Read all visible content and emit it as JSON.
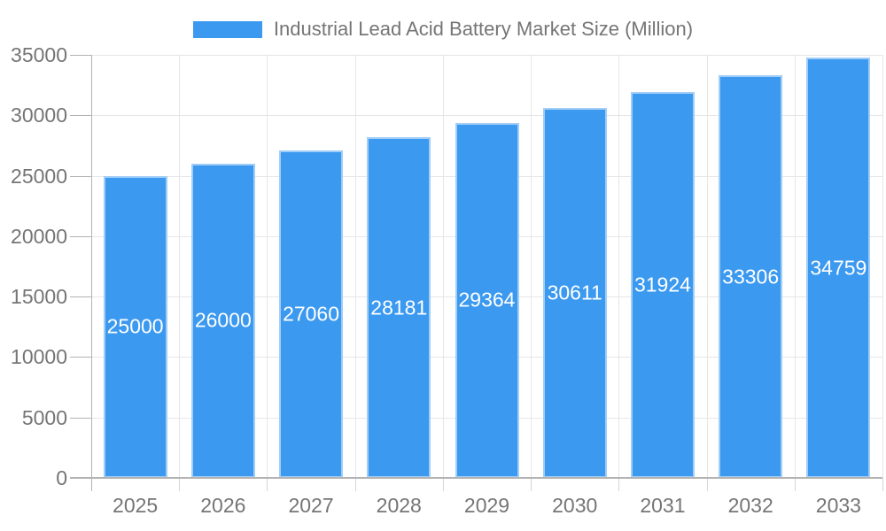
{
  "legend": {
    "label": "Industrial Lead Acid Battery Market Size (Million)"
  },
  "colors": {
    "bar": "#3B99F0",
    "grid": "#E6E6E6",
    "axis": "#B3B3B3",
    "minor_tick": "#D6D6D6",
    "text": "#757575",
    "value_text": "#FFFFFF",
    "background": "#FFFFFF"
  },
  "chart_data": {
    "type": "bar",
    "title": "Industrial Lead Acid Battery Market Size (Million)",
    "categories": [
      "2025",
      "2026",
      "2027",
      "2028",
      "2029",
      "2030",
      "2031",
      "2032",
      "2033"
    ],
    "values": [
      25000,
      26000,
      27060,
      28181,
      29364,
      30611,
      31924,
      33306,
      34759
    ],
    "series": [
      {
        "name": "Industrial Lead Acid Battery Market Size (Million)",
        "values": [
          25000,
          26000,
          27060,
          28181,
          29364,
          30611,
          31924,
          33306,
          34759
        ]
      }
    ],
    "xlabel": "",
    "ylabel": "",
    "ylim": [
      0,
      35000
    ],
    "yticks": [
      0,
      5000,
      10000,
      15000,
      20000,
      25000,
      30000,
      35000
    ],
    "ytick_labels": [
      "0",
      "5000",
      "10000",
      "15000",
      "20000",
      "25000",
      "30000",
      "35000"
    ],
    "grid": true,
    "legend_position": "top",
    "value_label_position": "inside-center"
  }
}
